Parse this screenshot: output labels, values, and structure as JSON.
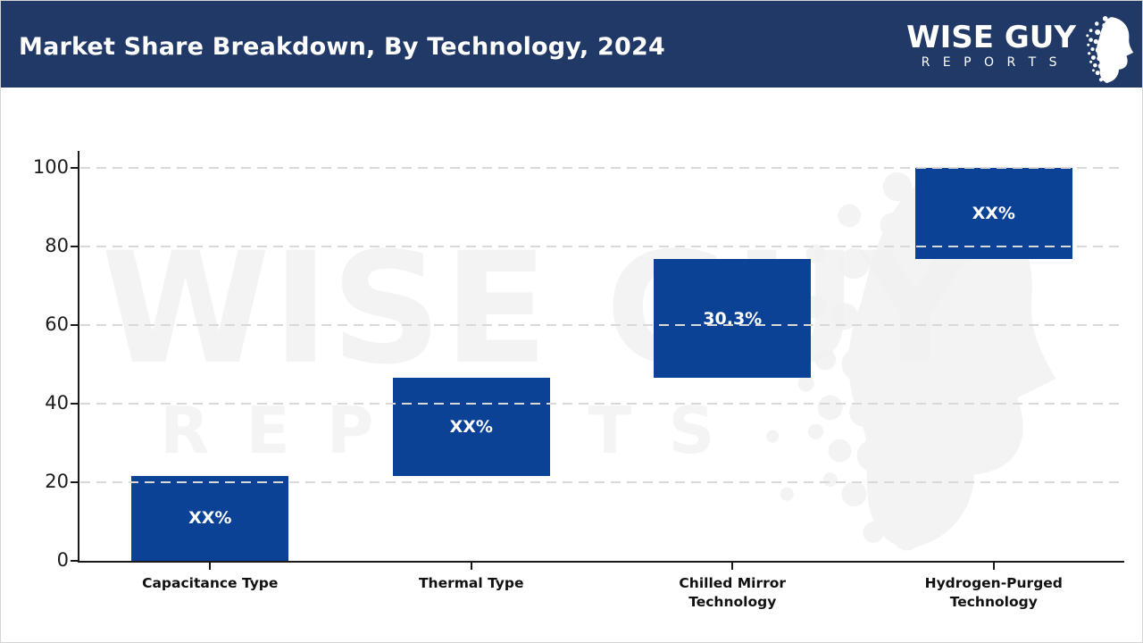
{
  "header": {
    "title": "Market Share Breakdown, By Technology, 2024",
    "logo": {
      "line1": "WISE GUY",
      "line2": "R E P O R T S",
      "icon": "wiseguy-head-icon"
    },
    "background_color": "#213966"
  },
  "watermark": {
    "line1": "WISE GUY",
    "line2": "R E P O R T S"
  },
  "chart_data": {
    "type": "bar",
    "subtype": "floating-waterfall",
    "title": "Market Share Breakdown, By Technology, 2024",
    "xlabel": "",
    "ylabel": "",
    "categories": [
      "Capacitance Type",
      "Thermal Type",
      "Chilled Mirror Technology",
      "Hydrogen-Purged Technology"
    ],
    "category_label_lines": [
      [
        "Capacitance Type"
      ],
      [
        "Thermal Type"
      ],
      [
        "Chilled Mirror",
        "Technology"
      ],
      [
        "Hydrogen-Purged",
        "Technology"
      ]
    ],
    "bars": [
      {
        "category": "Capacitance Type",
        "start": 0,
        "end": 21.7,
        "value": 21.7,
        "label": "XX%"
      },
      {
        "category": "Thermal Type",
        "start": 21.7,
        "end": 46.5,
        "value": 24.8,
        "label": "XX%"
      },
      {
        "category": "Chilled Mirror Technology",
        "start": 46.5,
        "end": 76.8,
        "value": 30.3,
        "label": "30.3%"
      },
      {
        "category": "Hydrogen-Purged Technology",
        "start": 76.8,
        "end": 100,
        "value": 23.2,
        "label": "XX%"
      }
    ],
    "yticks": [
      0,
      20,
      40,
      60,
      80,
      100
    ],
    "ylim": [
      0,
      104.5
    ],
    "grid": "horizontal-dashed",
    "legend": "none",
    "bar_color": "#0b4296",
    "axis_color": "#1a1a1a",
    "gridline_color": "#d9d9d9"
  }
}
